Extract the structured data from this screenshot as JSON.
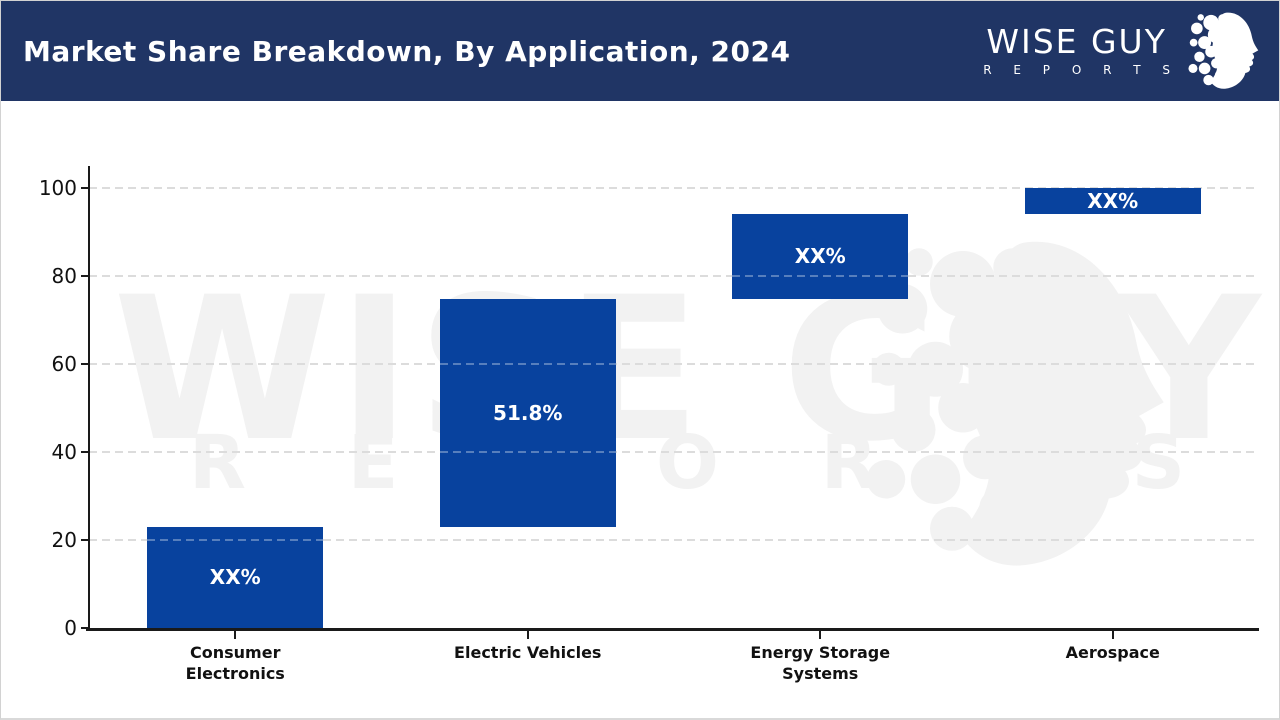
{
  "header": {
    "title": "Market Share Breakdown, By Application, 2024",
    "bg_color": "#203565",
    "logo": {
      "line1": "WISE GUY",
      "line2": "R E P O R T S"
    }
  },
  "watermark": {
    "line1": "WISE GUY",
    "line2": "R E P O R T S"
  },
  "chart_data": {
    "type": "bar",
    "subtype": "waterfall",
    "title": "",
    "xlabel": "",
    "ylabel": "",
    "categories": [
      "Consumer Electronics",
      "Electric Vehicles",
      "Energy Storage Systems",
      "Aerospace"
    ],
    "category_label_lines": [
      [
        "Consumer",
        "Electronics"
      ],
      [
        "Electric Vehicles"
      ],
      [
        "Energy Storage",
        "Systems"
      ],
      [
        "Aerospace"
      ]
    ],
    "segments": [
      {
        "label": "Consumer Electronics",
        "start": 0,
        "end": 23.0,
        "value": 23.0,
        "value_label": "XX%"
      },
      {
        "label": "Electric Vehicles",
        "start": 23.0,
        "end": 74.8,
        "value": 51.8,
        "value_label": "51.8%"
      },
      {
        "label": "Energy Storage Systems",
        "start": 74.8,
        "end": 94.1,
        "value": 19.3,
        "value_label": "XX%"
      },
      {
        "label": "Aerospace",
        "start": 94.1,
        "end": 100.0,
        "value": 5.9,
        "value_label": "XX%"
      }
    ],
    "y_ticks": [
      0,
      20,
      40,
      60,
      80,
      100
    ],
    "y_tick_labels": [
      "0",
      "20",
      "40",
      "60",
      "80",
      "100"
    ],
    "ylim": [
      0,
      105
    ],
    "grid": "dashed-horizontal",
    "legend": "none",
    "bar_color": "#08429e",
    "value_label_color": "#ffffff",
    "axis_color": "#1a1a1a",
    "gridline_color": "#dcdcdc"
  }
}
